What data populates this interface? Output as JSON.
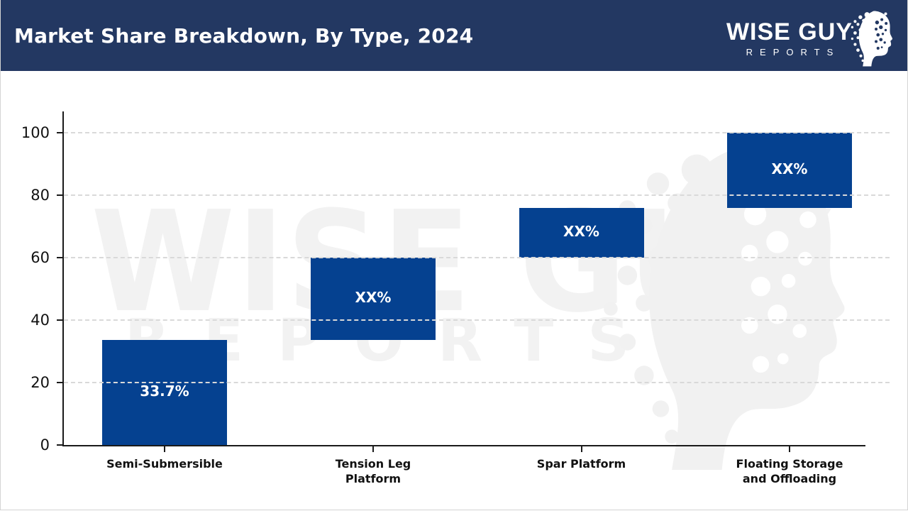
{
  "header": {
    "title": "Market Share Breakdown, By Type, 2024",
    "bg_color": "#233862",
    "logo": {
      "brand": "WISE GUY",
      "sub": "REPORTS"
    }
  },
  "watermark": {
    "brand": "WISE GUY",
    "sub": "REPORTS"
  },
  "chart_data": {
    "type": "bar",
    "subtype": "waterfall",
    "title": "Market Share Breakdown, By Type, 2024",
    "categories": [
      "Semi-Submersible",
      "Tension Leg\nPlatform",
      "Spar Platform",
      "Floating Storage\nand Offloading"
    ],
    "segments": [
      {
        "category": "Semi-Submersible",
        "start": 0,
        "end": 33.7,
        "label": "33.7%"
      },
      {
        "category": "Tension Leg Platform",
        "start": 33.7,
        "end": 60,
        "label": "XX%"
      },
      {
        "category": "Spar Platform",
        "start": 60,
        "end": 76,
        "label": "XX%"
      },
      {
        "category": "Floating Storage and Offloading",
        "start": 76,
        "end": 100,
        "label": "XX%"
      }
    ],
    "xlabel": "",
    "ylabel": "",
    "ylim": [
      0,
      100
    ],
    "yticks": [
      0,
      20,
      40,
      60,
      80,
      100
    ],
    "grid": "horizontal-dashed",
    "legend": "none",
    "bar_color": "#054190",
    "bar_label_color": "#ffffff",
    "gridline_color": "#d9d9d9",
    "axis_color": "#1a1a1a"
  }
}
